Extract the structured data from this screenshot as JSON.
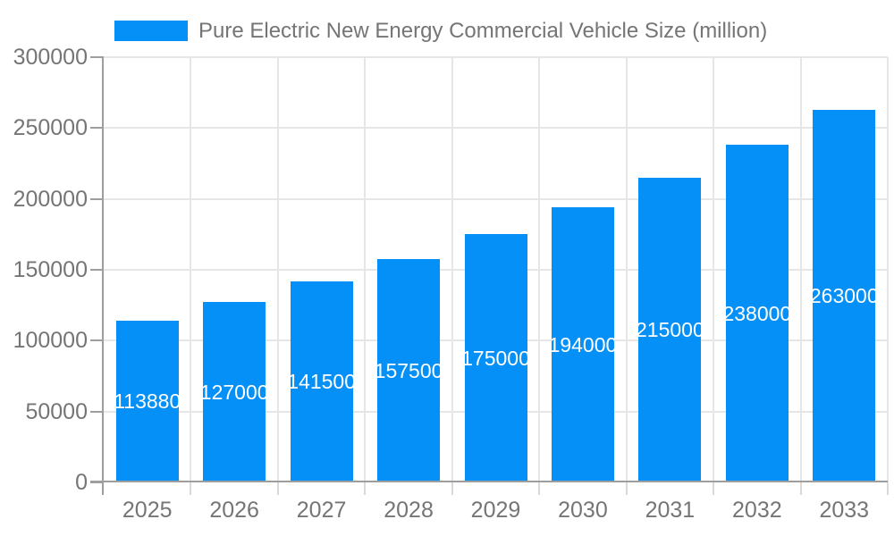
{
  "chart_data": {
    "type": "bar",
    "title": "Pure Electric New Energy Commercial Vehicle Size (million)",
    "legend_position": "top",
    "categories": [
      "2025",
      "2026",
      "2027",
      "2028",
      "2029",
      "2030",
      "2031",
      "2032",
      "2033"
    ],
    "series": [
      {
        "name": "Pure Electric New Energy Commercial Vehicle Size (million)",
        "values": [
          113880,
          127000,
          141500,
          157500,
          175000,
          194000,
          215000,
          238000,
          263000
        ]
      }
    ],
    "value_labels_shown": true,
    "xlabel": "",
    "ylabel": "",
    "ylim": [
      0,
      300000
    ],
    "yticks": [
      0,
      50000,
      100000,
      150000,
      200000,
      250000,
      300000
    ],
    "grid": true,
    "colors": {
      "bar": "#0590f8",
      "value_label": "#ffffff",
      "axis_text": "#757575",
      "gridline": "#e6e6e6",
      "axis_line": "#9e9e9e",
      "x_tick": "#d9d9d9",
      "background": "#ffffff"
    }
  }
}
